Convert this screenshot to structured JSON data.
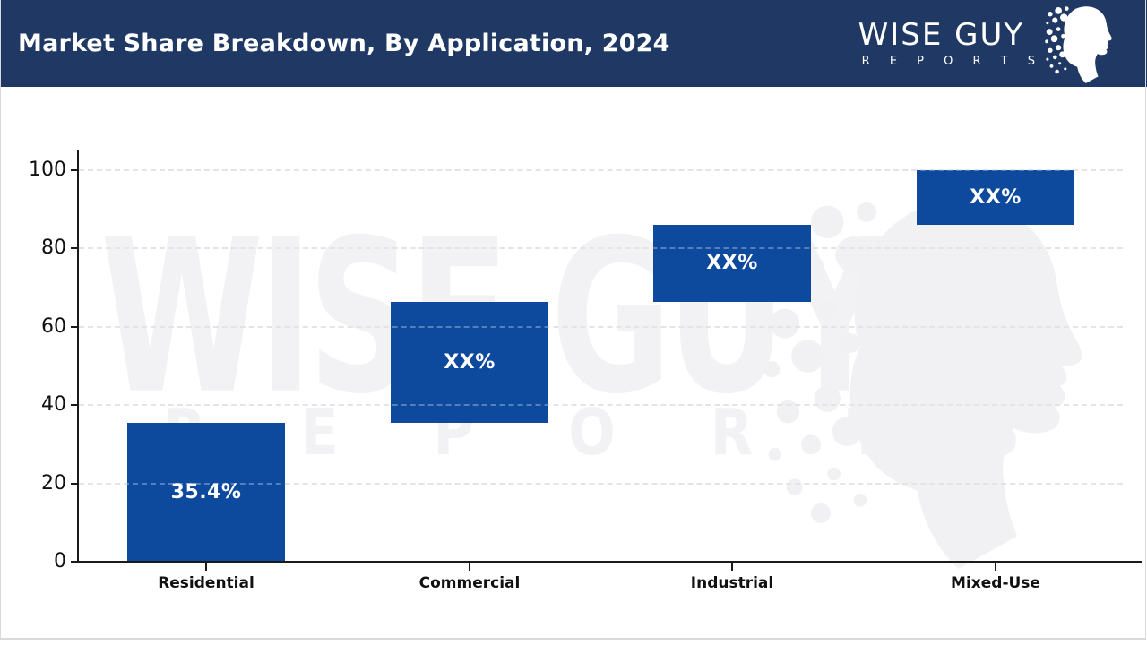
{
  "header": {
    "title": "Market Share Breakdown, By Application, 2024",
    "logo": {
      "line1": "WISE GUY",
      "line2": "R E P O R T S"
    }
  },
  "watermark": {
    "line1": "WISE GUY",
    "line2": "R E P O R T S"
  },
  "chart_data": {
    "type": "bar",
    "subtype": "waterfall",
    "title": "Market Share Breakdown, By Application, 2024",
    "categories": [
      "Residential",
      "Commercial",
      "Industrial",
      "Mixed-Use"
    ],
    "segments": [
      {
        "category": "Residential",
        "start": 0,
        "end": 35.4,
        "label": "35.4%"
      },
      {
        "category": "Commercial",
        "start": 35.4,
        "end": 66.4,
        "label": "XX%"
      },
      {
        "category": "Industrial",
        "start": 66.4,
        "end": 86.0,
        "label": "XX%"
      },
      {
        "category": "Mixed-Use",
        "start": 86.0,
        "end": 100.0,
        "label": "XX%"
      }
    ],
    "xlabel": "",
    "ylabel": "",
    "ylim": [
      0,
      100
    ],
    "yticks": [
      0,
      20,
      40,
      60,
      80,
      100
    ],
    "grid": "horizontal-dashed",
    "legend": "none",
    "colors": {
      "bar": "#0d4a9e",
      "bar_label": "#ffffff",
      "axis": "#1a1a1a",
      "gridline": "#d8d8d8",
      "header_bg": "#1f3864",
      "header_text": "#ffffff",
      "watermark": "#f1f1f4"
    }
  }
}
